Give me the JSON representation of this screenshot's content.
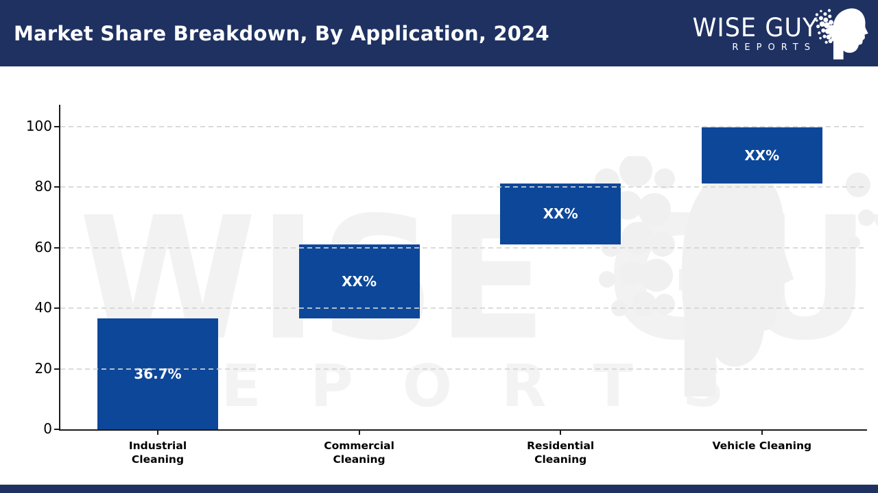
{
  "header": {
    "title": "Market Share Breakdown, By Application, 2024",
    "logo": {
      "line1": "WISE GUY",
      "line2": "REPORTS"
    }
  },
  "watermark": {
    "line1": "WISE GUY",
    "line2": "REPORTS"
  },
  "chart_data": {
    "type": "bar",
    "subtype": "waterfall",
    "title": "Market Share Breakdown, By Application, 2024",
    "categories": [
      "Industrial\nCleaning",
      "Commercial\nCleaning",
      "Residential\nCleaning",
      "Vehicle Cleaning"
    ],
    "segments": [
      {
        "category": "Industrial\nCleaning",
        "start": 0,
        "end": 36.7,
        "label": "36.7%"
      },
      {
        "category": "Commercial\nCleaning",
        "start": 36.7,
        "end": 61.1,
        "label": "XX%"
      },
      {
        "category": "Residential\nCleaning",
        "start": 61.1,
        "end": 81.3,
        "label": "XX%"
      },
      {
        "category": "Vehicle Cleaning",
        "start": 81.3,
        "end": 99.7,
        "label": "XX%"
      }
    ],
    "ylim": [
      0,
      100
    ],
    "yticks": [
      0,
      20,
      40,
      60,
      80,
      100
    ],
    "grid": "dashed horizontal",
    "legend": "none",
    "bar_color": "#0d4799",
    "bar_label_color": "#ffffff",
    "header_color": "#1e3161"
  }
}
